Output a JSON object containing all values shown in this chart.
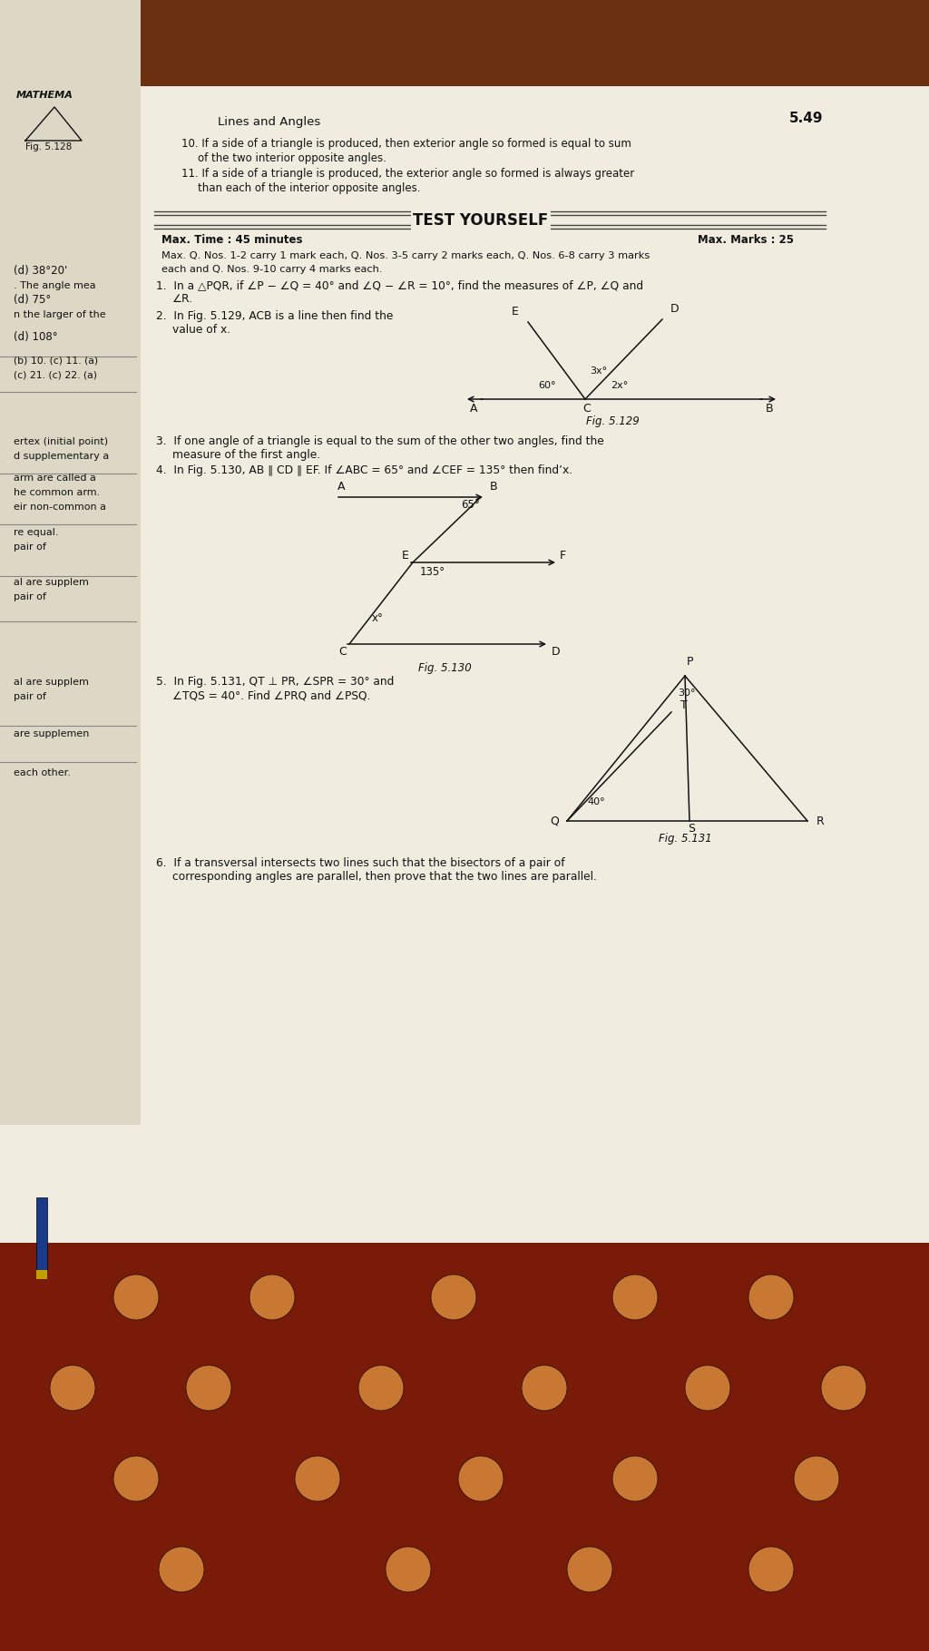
{
  "page_number": "5.49",
  "header_left": "MATHEMA",
  "header_center": "Lines and Angles",
  "bg_color": "#f0ede0",
  "left_bg_color": "#d8d4c4",
  "top_bg_color": "#7a4020",
  "bottom_bg_color": "#6a3010",
  "text_color": "#111111",
  "line_color": "#111111",
  "fig_5128_label": "Fig. 5.128",
  "fig_5129_label": "Fig. 5.129",
  "fig_5130_label": "Fig. 5.130",
  "fig_5131_label": "Fig. 5.131"
}
